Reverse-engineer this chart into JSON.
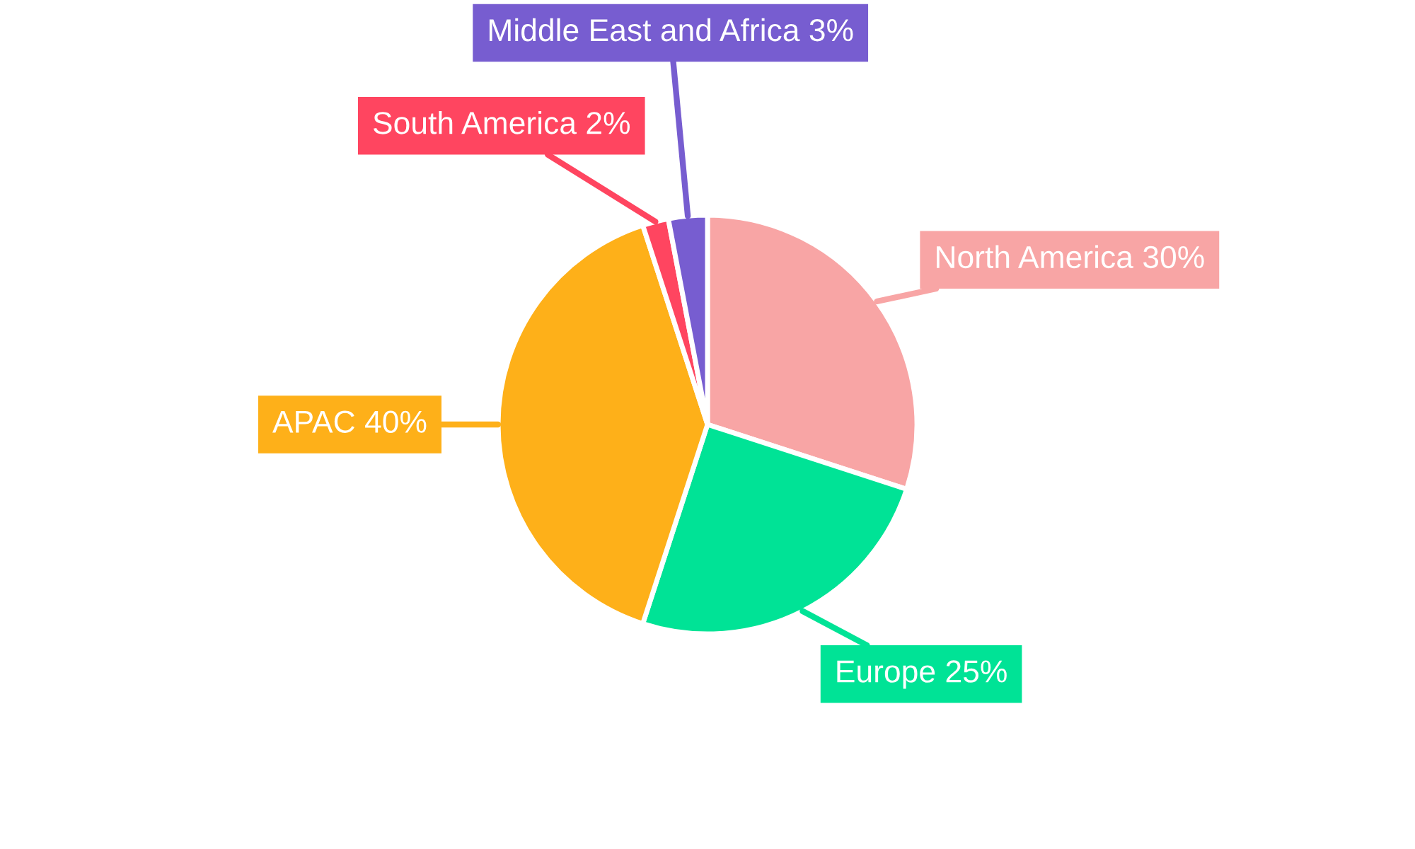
{
  "chart_data": {
    "type": "pie",
    "categories": [
      "North America",
      "Europe",
      "APAC",
      "South America",
      "Middle East and Africa"
    ],
    "values": [
      30,
      25,
      40,
      2,
      3
    ],
    "value_labels": [
      "30%",
      "25%",
      "40%",
      "2%",
      "3%"
    ],
    "colors": [
      "#f8a5a5",
      "#00e396",
      "#feb019",
      "#ff4560",
      "#775dd0"
    ]
  }
}
